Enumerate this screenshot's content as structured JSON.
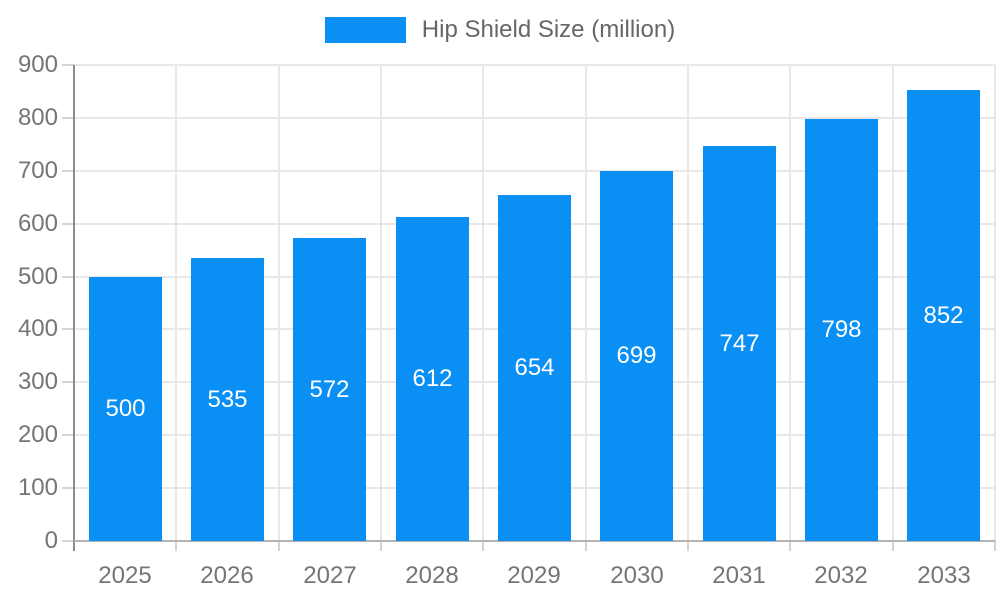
{
  "legend": {
    "label": "Hip Shield Size (million)"
  },
  "colors": {
    "bar": "#0a8ff5",
    "bar_label": "#ffffff",
    "grid": "#e8e8e8",
    "tick": "#d4d4d4",
    "axis_y": "#8c8c8c",
    "axis_x": "#b3b3b3",
    "axis_label": "#757575",
    "legend_text": "#666666",
    "background": "#ffffff"
  },
  "chart_data": {
    "type": "bar",
    "title": "",
    "xlabel": "",
    "ylabel": "",
    "categories": [
      "2025",
      "2026",
      "2027",
      "2028",
      "2029",
      "2030",
      "2031",
      "2032",
      "2033"
    ],
    "series": [
      {
        "name": "Hip Shield Size (million)",
        "values": [
          500,
          535,
          572,
          612,
          654,
          699,
          747,
          798,
          852
        ]
      }
    ],
    "ylim": [
      0,
      900
    ],
    "yticks": [
      0,
      100,
      200,
      300,
      400,
      500,
      600,
      700,
      800,
      900
    ],
    "grid": true,
    "legend_position": "top",
    "data_labels": "inside-center"
  }
}
